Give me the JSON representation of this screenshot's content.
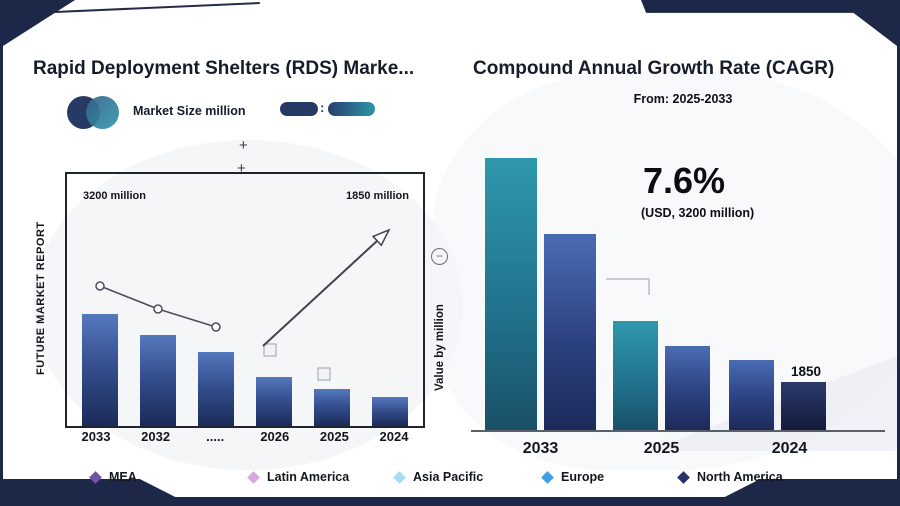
{
  "header": {
    "left_title": "Rapid Deployment Shelters (RDS) Marke...",
    "right_title": "Compound Annual Growth Rate (CAGR)",
    "right_subtitle": "From: 2025-2033",
    "market_size_label": "Market Size million",
    "ratio_colon": ":"
  },
  "cagr": {
    "value": "7.6%",
    "detail": "(USD, 3200 million)"
  },
  "left_panel": {
    "side_label": "FUTURE MARKET REPORT",
    "annotation_left": "3200 million",
    "annotation_right": "1850 million"
  },
  "right_panel": {
    "side_label": "Value by million"
  },
  "decor": {
    "plus": "+",
    "minus": "−"
  },
  "legend": {
    "items": [
      {
        "label": "MEA",
        "color": "#6f55a5"
      },
      {
        "label": "Latin America",
        "color": "#d5a9e2"
      },
      {
        "label": "Asia Pacific",
        "color": "#a6ddf4"
      },
      {
        "label": "Europe",
        "color": "#3f9fe0"
      },
      {
        "label": "North America",
        "color": "#273266"
      }
    ]
  },
  "chart_data": [
    {
      "type": "bar",
      "title": "Market Size million",
      "categories": [
        "2033",
        "2032",
        ".....",
        "2026",
        "2025",
        "2024"
      ],
      "values": [
        3200,
        2600,
        2100,
        1400,
        1050,
        820
      ],
      "ylim": [
        0,
        3200
      ],
      "annotations": [
        "3200 million",
        "1850 million"
      ],
      "xlabel": "",
      "ylabel": ""
    },
    {
      "type": "bar",
      "title": "Compound Annual Growth Rate (CAGR) 7.6% (USD, 3200 million)",
      "categories": [
        "2033",
        "2025",
        "2024"
      ],
      "ylim": [
        0,
        3200
      ],
      "ylabel": "Value by million",
      "groups": [
        {
          "label": "2033",
          "bars": [
            {
              "value": 3200,
              "color": "teal"
            },
            {
              "value": 2300,
              "color": "blue"
            }
          ]
        },
        {
          "label": "2025",
          "bars": [
            {
              "value": 1280,
              "color": "teal"
            },
            {
              "value": 990,
              "color": "blue"
            }
          ]
        },
        {
          "label": "2024",
          "bars": [
            {
              "value": 820,
              "color": "blue"
            },
            {
              "value": 560,
              "color": "navy"
            }
          ],
          "value_label": "1850"
        }
      ]
    }
  ]
}
